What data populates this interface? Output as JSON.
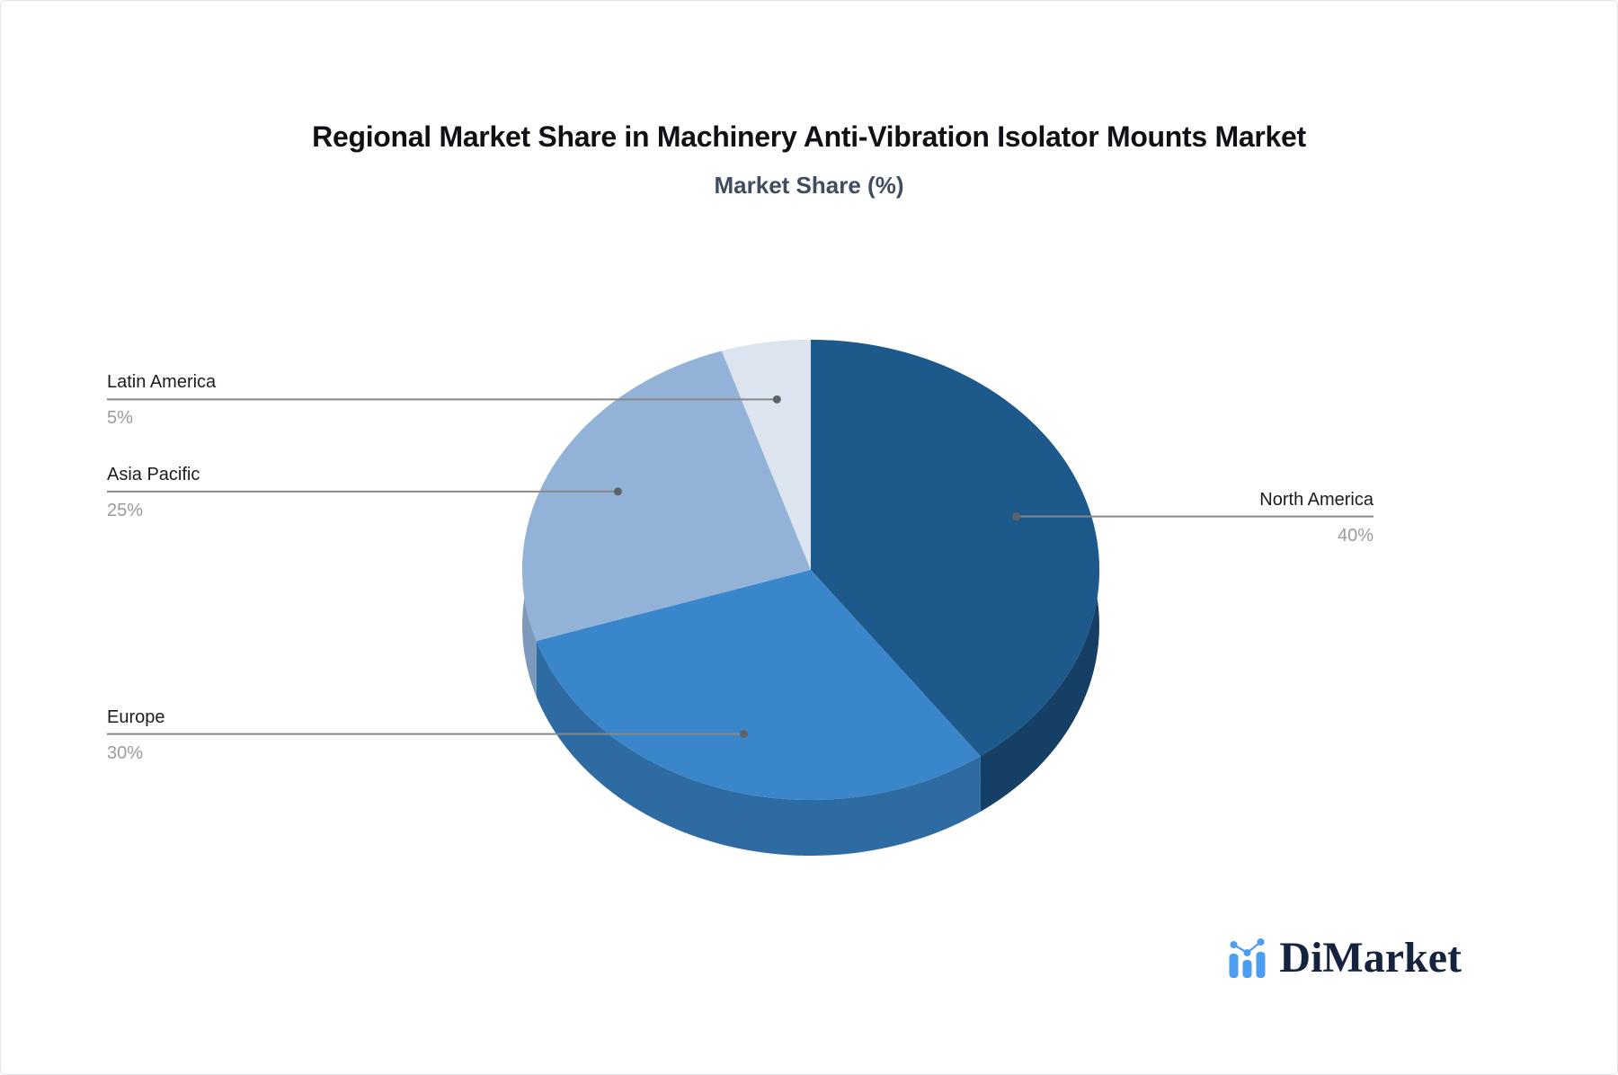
{
  "title": "Regional Market Share in Machinery Anti-Vibration Isolator Mounts Market",
  "subtitle": "Market Share (%)",
  "logo": {
    "text": "DiMarket",
    "icon": "bar-line-chart-icon",
    "icon_color": "#4d9ef0",
    "text_color": "#16233e"
  },
  "chart_data": {
    "type": "pie",
    "style": "3d",
    "title": "Regional Market Share in Machinery Anti-Vibration Isolator Mounts Market",
    "subtitle": "Market Share (%)",
    "unit": "%",
    "start_angle": "top",
    "direction": "clockwise",
    "legend": "none",
    "slices": [
      {
        "label": "North America",
        "value": 40,
        "pct_label": "40%",
        "color": "#1e598c",
        "side_color": "#163f66",
        "label_side": "right"
      },
      {
        "label": "Europe",
        "value": 30,
        "pct_label": "30%",
        "color": "#3a86cb",
        "side_color": "#2e6ba2",
        "label_side": "left"
      },
      {
        "label": "Asia Pacific",
        "value": 25,
        "pct_label": "25%",
        "color": "#93b2d7",
        "side_color": "#7c98ba",
        "label_side": "left"
      },
      {
        "label": "Latin America",
        "value": 5,
        "pct_label": "5%",
        "color": "#dce4f0",
        "side_color": "#b9c4d6",
        "label_side": "left"
      }
    ],
    "connector_color": "#898989",
    "connector_dot_color": "#5f6368",
    "label_color": "#1c1c1c",
    "pct_color": "#9b9b9b"
  }
}
